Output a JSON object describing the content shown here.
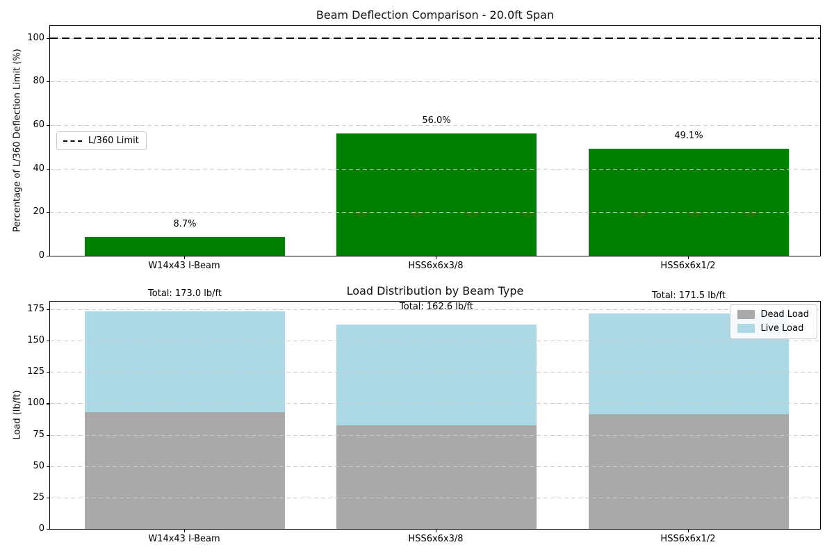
{
  "chart_data": [
    {
      "type": "bar",
      "title": "Beam Deflection Comparison - 20.0ft Span",
      "ylabel": "Percentage of L/360 Deflection Limit (%)",
      "categories": [
        "W14x43 I-Beam",
        "HSS6x6x3/8",
        "HSS6x6x1/2"
      ],
      "values": [
        8.7,
        56.0,
        49.1
      ],
      "value_labels": [
        "8.7%",
        "56.0%",
        "49.1%"
      ],
      "bar_color": "#008000",
      "yticks": [
        0,
        20,
        40,
        60,
        80,
        100
      ],
      "ylim": [
        0,
        105.6
      ],
      "grid": "dashed-y",
      "threshold": {
        "value": 100,
        "style": "dashed",
        "color": "#000000"
      },
      "legend": {
        "position": "center-left",
        "entries": [
          {
            "label": "L/360 Limit",
            "swatch": "dashed-line",
            "color": "#000000"
          }
        ]
      }
    },
    {
      "type": "stacked-bar",
      "title": "Load Distribution by Beam Type",
      "ylabel": "Load (lb/ft)",
      "categories": [
        "W14x43 I-Beam",
        "HSS6x6x3/8",
        "HSS6x6x1/2"
      ],
      "series": [
        {
          "name": "Dead Load",
          "color": "#a9a9a9",
          "values": [
            93.0,
            82.6,
            91.5
          ]
        },
        {
          "name": "Live Load",
          "color": "#add8e6",
          "values": [
            80.0,
            80.0,
            80.0
          ]
        }
      ],
      "totals": [
        173.0,
        162.6,
        171.5
      ],
      "total_labels": [
        "Total: 173.0 lb/ft",
        "Total: 162.6 lb/ft",
        "Total: 171.5 lb/ft"
      ],
      "yticks": [
        0,
        25,
        50,
        75,
        100,
        125,
        150,
        175
      ],
      "ylim": [
        0,
        181
      ],
      "grid": "dashed-y",
      "legend": {
        "position": "upper-right",
        "entries": [
          {
            "label": "Dead Load",
            "swatch": "rect",
            "color": "#a9a9a9"
          },
          {
            "label": "Live Load",
            "swatch": "rect",
            "color": "#add8e6"
          }
        ]
      }
    }
  ]
}
